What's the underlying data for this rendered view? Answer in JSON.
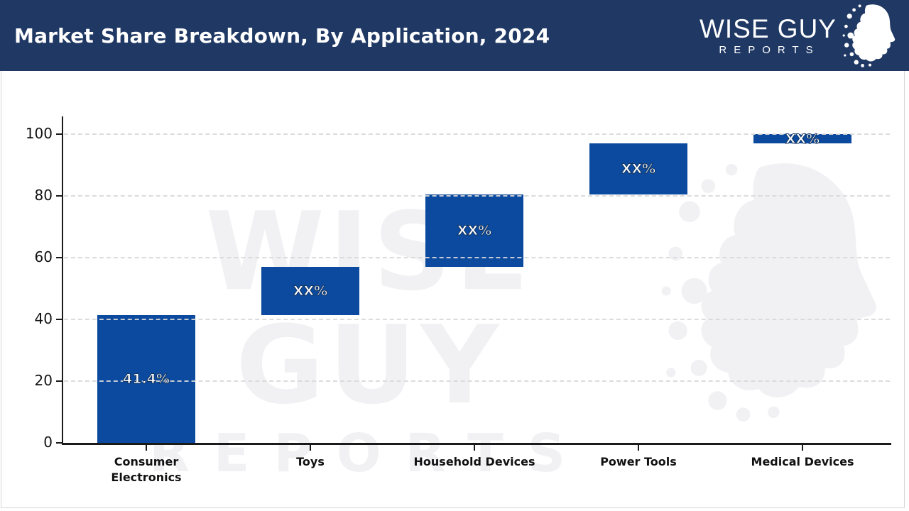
{
  "header": {
    "title": "Market Share Breakdown, By Application, 2024",
    "logo": {
      "line1": "WISE GUY",
      "line2": "REPORTS"
    }
  },
  "watermark": {
    "line1": "WISE GUY",
    "line2": "REPORTS"
  },
  "colors": {
    "header_bg": "#1f3864",
    "bar": "#0b4a9e",
    "grid": "#d9d9d9",
    "axis": "#1a1a1a",
    "bar_label_fill": "#ffffff",
    "bar_label_outline": "#16355f",
    "watermark": "#f1f1f4"
  },
  "chart_data": {
    "type": "bar",
    "subtype": "waterfall",
    "title": "Market Share Breakdown, By Application, 2024",
    "categories": [
      "Consumer\nElectronics",
      "Toys",
      "Household Devices",
      "Power Tools",
      "Medical Devices"
    ],
    "starts": [
      0,
      41.4,
      57.0,
      80.4,
      96.9
    ],
    "ends": [
      41.4,
      57.0,
      80.4,
      96.9,
      100
    ],
    "values": [
      41.4,
      15.6,
      23.4,
      16.5,
      3.1
    ],
    "displayed_labels": [
      "41.4%",
      "XX%",
      "XX%",
      "XX%",
      "XX%"
    ],
    "xlabel": "",
    "ylabel": "",
    "yticks": [
      0,
      20,
      40,
      60,
      80,
      100
    ],
    "ylim": [
      0,
      106
    ],
    "grid": "horizontal-dashed",
    "legend": "none"
  }
}
